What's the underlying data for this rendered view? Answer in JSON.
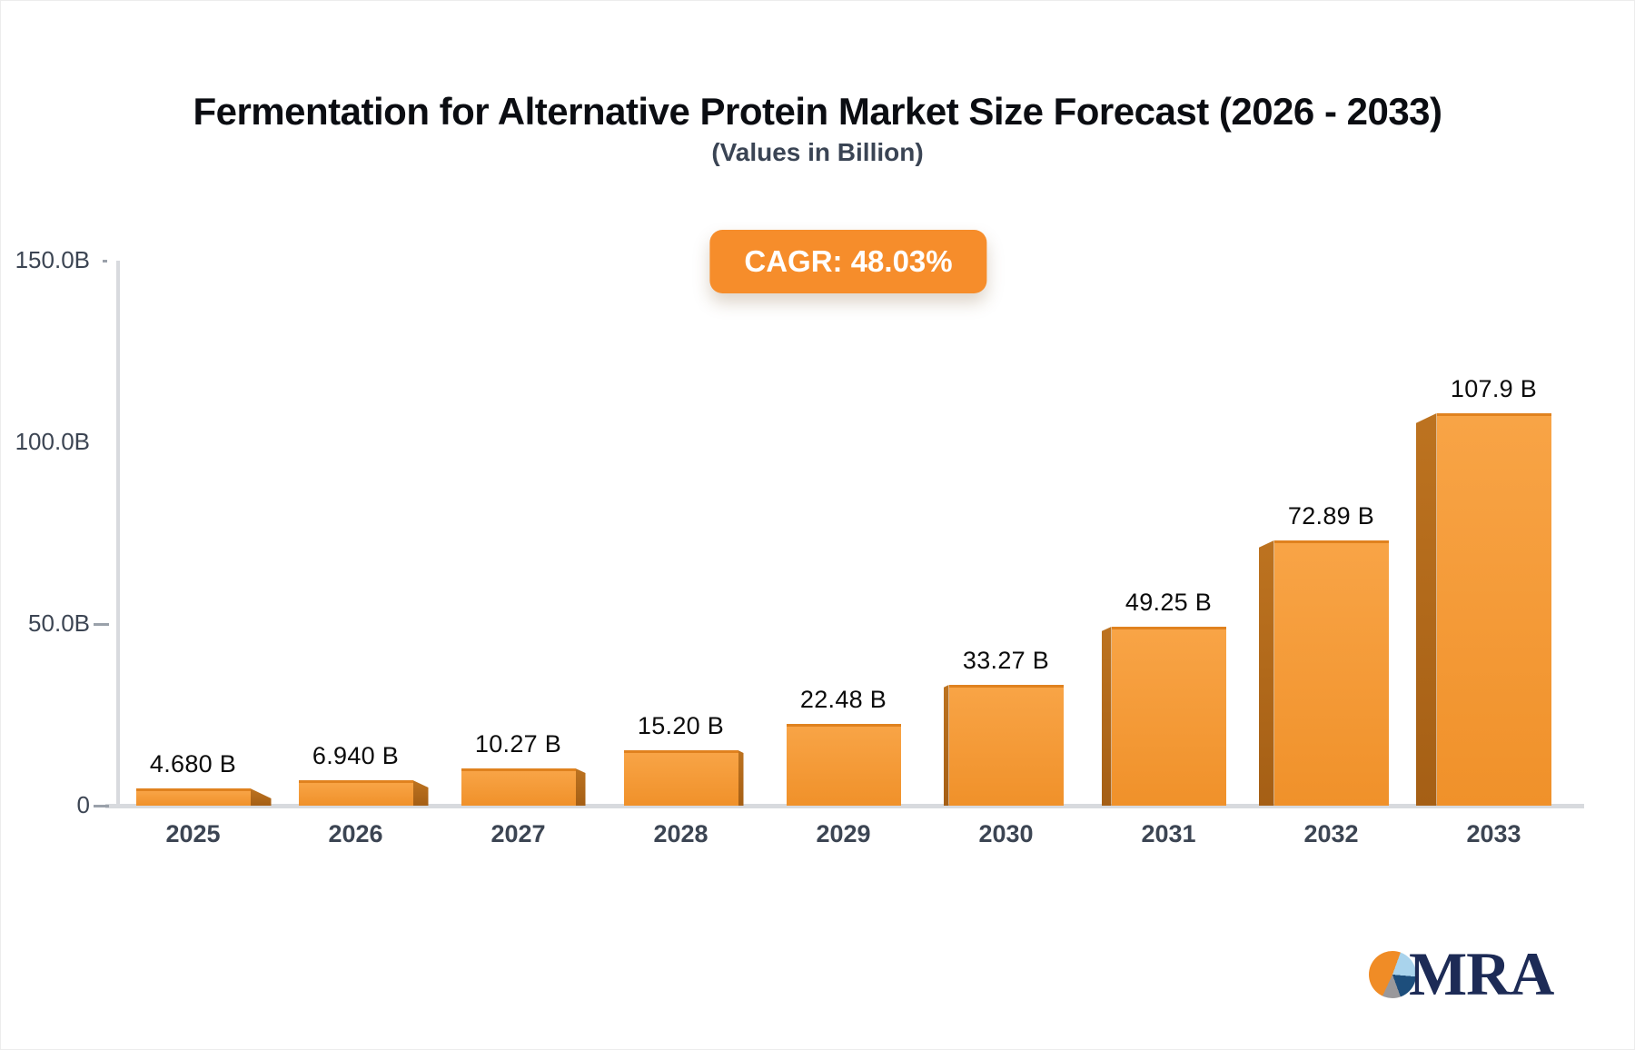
{
  "title": "Fermentation for Alternative Protein Market Size Forecast (2026 - 2033)",
  "subtitle": "(Values in Billion)",
  "badge": {
    "label": "CAGR: 48.03%",
    "color": "#F68D2B"
  },
  "chart_data": {
    "type": "bar",
    "categories": [
      "2025",
      "2026",
      "2027",
      "2028",
      "2029",
      "2030",
      "2031",
      "2032",
      "2033"
    ],
    "values": [
      4.68,
      6.94,
      10.27,
      15.2,
      22.48,
      33.27,
      49.25,
      72.89,
      107.9
    ],
    "value_labels": [
      "4.680 B",
      "6.940 B",
      "10.27 B",
      "15.20 B",
      "22.48 B",
      "33.27 B",
      "49.25 B",
      "72.89 B",
      "107.9 B"
    ],
    "title": "Fermentation for Alternative Protein Market Size Forecast (2026 - 2033)",
    "xlabel": "",
    "ylabel": "",
    "ylim": [
      0,
      150
    ],
    "yticks": [
      {
        "label": "150.0B",
        "value": 150
      },
      {
        "label": "100.0B",
        "value": 100
      },
      {
        "label": "50.0B",
        "value": 50
      },
      {
        "label": "0",
        "value": 0
      }
    ],
    "grid": false,
    "legend": "none",
    "style": "3d-bars-center-perspective",
    "colors": {
      "bar_face_top": "#f8a446",
      "bar_face_bottom": "#f0912a",
      "bar_side": "#b16a1b",
      "bar_side_light": "#bd7320",
      "bar_side_dark": "#a55f15",
      "axis": "#D8DADE",
      "tick_text": "#3c4553",
      "value_text": "#0c0c0c",
      "accent": "#F68D2B"
    }
  },
  "logo": {
    "text": "MRA",
    "pie_colors": {
      "orange": "#F08C26",
      "light_blue": "#A9D3EC",
      "navy": "#1D4E7C",
      "gray": "#99989B"
    },
    "text_color": "#1d2b56"
  }
}
